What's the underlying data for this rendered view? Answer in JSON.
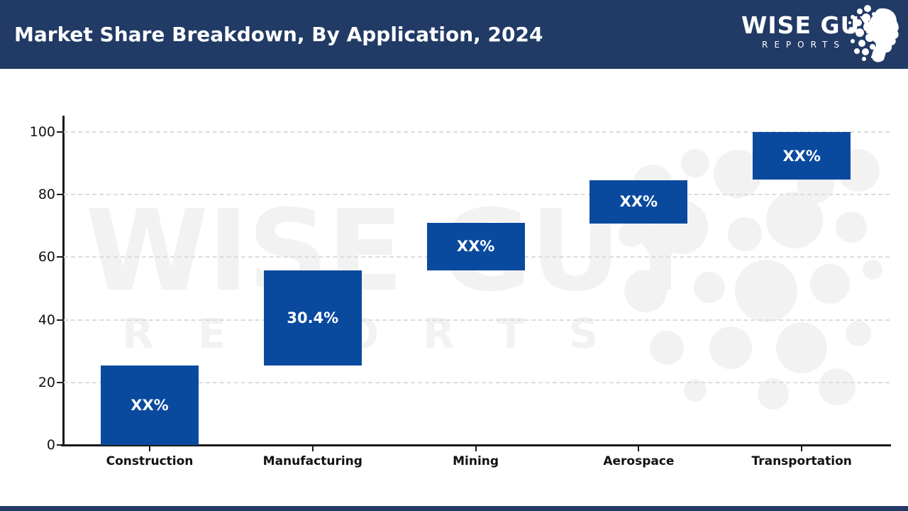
{
  "header": {
    "title": "Market Share Breakdown, By Application, 2024",
    "logo": {
      "line1": "WISE GUY",
      "line2": "REPORTS"
    }
  },
  "watermark": {
    "line1": "WISE GUY",
    "line2": "REPORTS"
  },
  "colors": {
    "header_bg": "#213a66",
    "footer_bg": "#213a66",
    "bar_fill": "#0a4a9e",
    "bar_label": "#ffffff",
    "grid": "#dcdcdc",
    "axis": "#1a1a1a",
    "watermark": "#f2f2f2"
  },
  "chart_data": {
    "type": "bar",
    "subtype": "floating-waterfall",
    "title": "Market Share Breakdown, By Application, 2024",
    "categories": [
      "Construction",
      "Manufacturing",
      "Mining",
      "Aerospace",
      "Transportation"
    ],
    "bars": [
      {
        "category": "Construction",
        "start": 0,
        "end": 25.3,
        "label": "XX%"
      },
      {
        "category": "Manufacturing",
        "start": 25.3,
        "end": 55.7,
        "label": "30.4%",
        "value": 30.4
      },
      {
        "category": "Mining",
        "start": 55.8,
        "end": 71.0,
        "label": "XX%"
      },
      {
        "category": "Aerospace",
        "start": 70.8,
        "end": 84.6,
        "label": "XX%"
      },
      {
        "category": "Transportation",
        "start": 84.8,
        "end": 100.0,
        "label": "XX%"
      }
    ],
    "yticks": [
      0,
      20,
      40,
      60,
      80,
      100
    ],
    "ylim": [
      0,
      105
    ],
    "xlabel": "",
    "ylabel": "",
    "grid": "horizontal-dashed",
    "legend": false
  }
}
